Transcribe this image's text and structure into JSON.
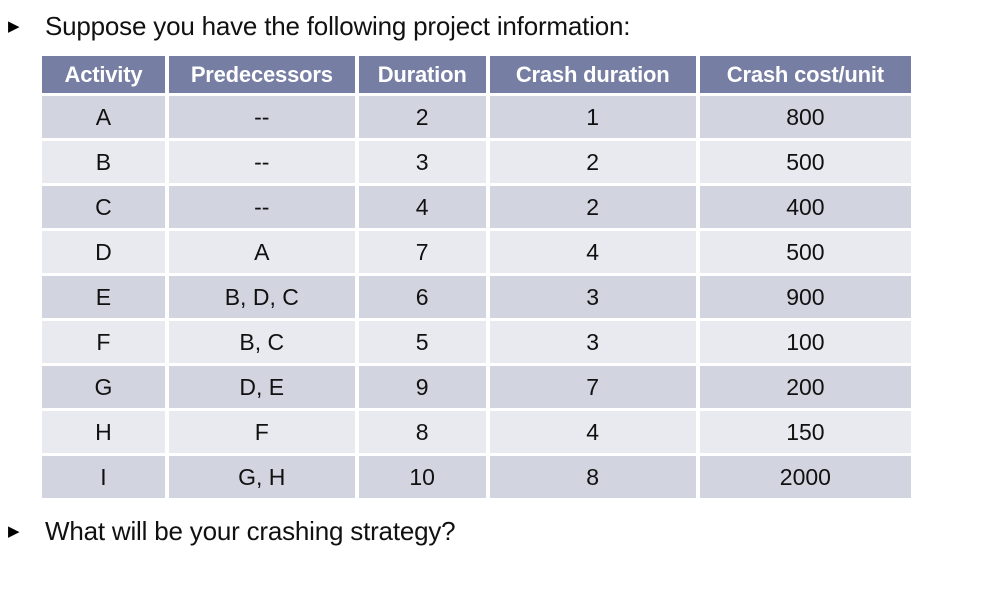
{
  "slide": {
    "bullet_glyph": "▶",
    "bullet_top": "Suppose you have the following project information:",
    "bullet_bottom": "What will be your crashing strategy?"
  },
  "colors": {
    "header_bg": "#767EA3",
    "header_text": "#FFFFFF",
    "row_odd_bg": "#D2D5DF",
    "row_even_bg": "#E9EAF0",
    "body_text": "#111111",
    "background": "#FFFFFF"
  },
  "table": {
    "headers": [
      "Activity",
      "Predecessors",
      "Duration",
      "Crash duration",
      "Crash cost/unit"
    ],
    "rows": [
      [
        "A",
        "--",
        "2",
        "1",
        "800"
      ],
      [
        "B",
        "--",
        "3",
        "2",
        "500"
      ],
      [
        "C",
        "--",
        "4",
        "2",
        "400"
      ],
      [
        "D",
        "A",
        "7",
        "4",
        "500"
      ],
      [
        "E",
        "B, D, C",
        "6",
        "3",
        "900"
      ],
      [
        "F",
        "B, C",
        "5",
        "3",
        "100"
      ],
      [
        "G",
        "D, E",
        "9",
        "7",
        "200"
      ],
      [
        "H",
        "F",
        "8",
        "4",
        "150"
      ],
      [
        "I",
        "G, H",
        "10",
        "8",
        "2000"
      ]
    ]
  }
}
